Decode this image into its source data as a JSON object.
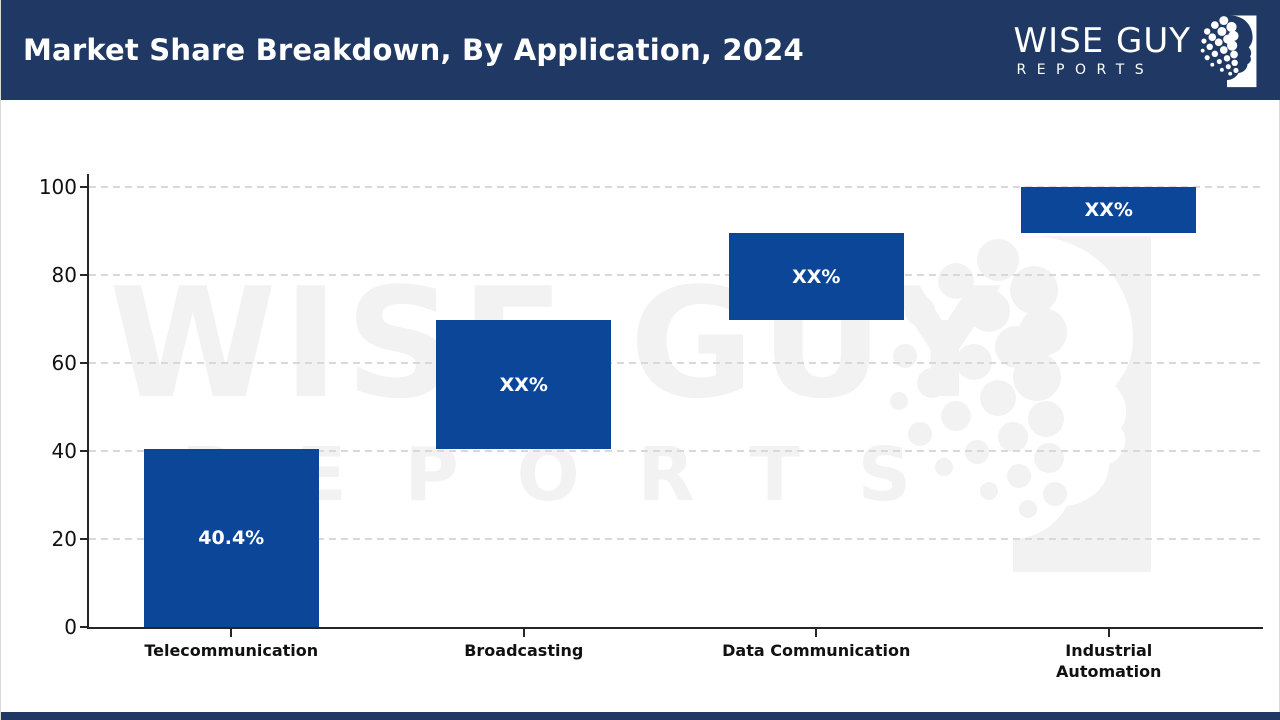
{
  "header": {
    "title": "Market Share Breakdown, By Application, 2024",
    "logo": {
      "wordmark": "WISE GUY",
      "subtext": "REPORTS"
    }
  },
  "watermark": {
    "line1": "WISE GUY",
    "line2": "REPORTS"
  },
  "colors": {
    "header_bg": "#203864",
    "bar_blue": "#0c4699",
    "gridline": "#d9d9d9",
    "axis": "#262626",
    "watermark_gray": "#f2f2f2",
    "bar_label_white": "#ffffff",
    "text_dark": "#111111"
  },
  "chart_data": {
    "type": "bar",
    "subtype": "waterfall-range-bars",
    "title": "Market Share Breakdown, By Application, 2024",
    "categories": [
      "Telecommunication",
      "Broadcasting",
      "Data Communication",
      "Industrial\nAutomation"
    ],
    "series": [
      {
        "name": "Telecommunication",
        "range": [
          0,
          40.4
        ],
        "label": "40.4%"
      },
      {
        "name": "Broadcasting",
        "range": [
          40.4,
          69.8
        ],
        "label": "XX%"
      },
      {
        "name": "Data Communication",
        "range": [
          69.8,
          89.6
        ],
        "label": "XX%"
      },
      {
        "name": "Industrial Automation",
        "range": [
          89.6,
          100
        ],
        "label": "XX%"
      }
    ],
    "xlabel": "",
    "ylabel": "",
    "ylim": [
      0,
      100
    ],
    "y_ticks": [
      0,
      20,
      40,
      60,
      80,
      100
    ],
    "grid": "horizontal-dashed",
    "legend": "none"
  }
}
